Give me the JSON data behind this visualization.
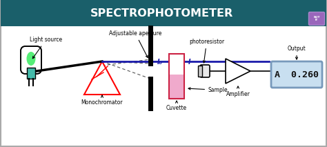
{
  "title": "SPECTROPHOTOMETER",
  "title_bg": "#1a5f6a",
  "title_color": "white",
  "bg_color": "white",
  "light_source_label": "Light source",
  "monochromator_label": "Monochromator",
  "aperture_label": "Adjustable aperture",
  "cuvette_label": "Cuvette",
  "sample_label": "Sample",
  "photoresistor_label": "photoresistor",
  "amplifier_label": "Amplifier",
  "output_label": "Output",
  "i0_label": "I₀",
  "i_label": "I",
  "display_text": "A  0.260",
  "display_bg": "#c8dff0",
  "display_border": "#7799bb",
  "beam_color": "#1a1aaa",
  "fan_color": "#555555"
}
